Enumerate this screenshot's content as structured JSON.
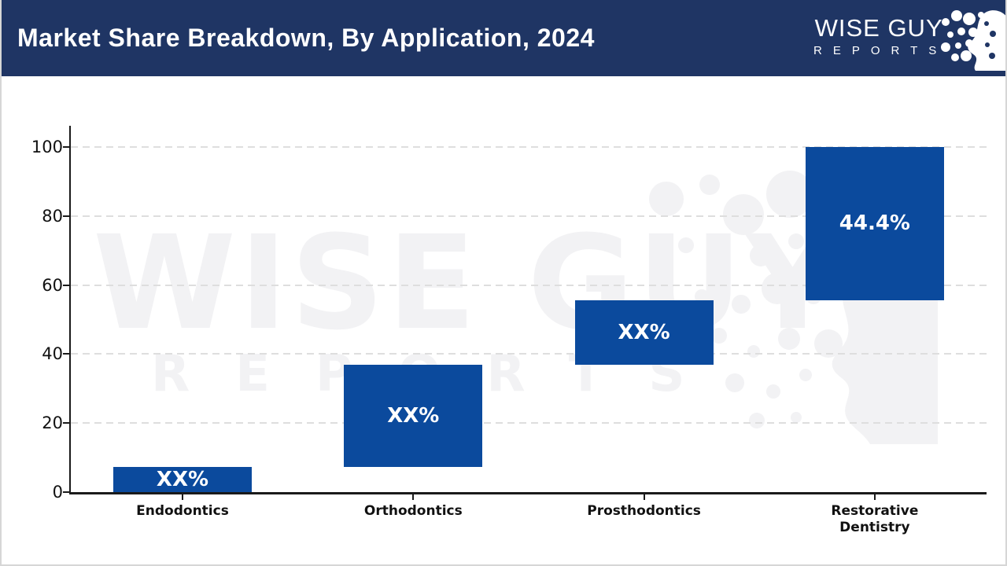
{
  "header": {
    "title": "Market Share Breakdown, By Application, 2024",
    "logo": {
      "wordmark": "WISE GUY",
      "subtext": "REPORTS"
    }
  },
  "watermark": {
    "wordmark": "WISE GUY",
    "subtext": "REPORTS"
  },
  "colors": {
    "header_bg": "#1f3564",
    "title_text": "#ffffff",
    "bar_fill": "#0b4a9d",
    "bar_label": "#ffffff",
    "axis": "#1a1a1a",
    "grid": "#dedede",
    "tick_label": "#111111",
    "watermark": "#f2f2f4",
    "page_border": "#d6d6d6"
  },
  "chart_data": {
    "type": "bar",
    "subtype": "waterfall",
    "title": "Market Share Breakdown, By Application, 2024",
    "xlabel": "",
    "ylabel": "",
    "units": "percent",
    "ylim": [
      0,
      106
    ],
    "yticks": [
      0,
      20,
      40,
      60,
      80,
      100
    ],
    "grid": "horizontal-dashed",
    "legend": "none",
    "categories": [
      "Endodontics",
      "Orthodontics",
      "Prosthodontics",
      "Restorative Dentistry"
    ],
    "segments": [
      {
        "category": "Endodontics",
        "start": 0,
        "end": 7.4,
        "value_label": "XX%"
      },
      {
        "category": "Orthodontics",
        "start": 7.4,
        "end": 37.0,
        "value_label": "XX%"
      },
      {
        "category": "Prosthodontics",
        "start": 37.0,
        "end": 55.6,
        "value_label": "XX%"
      },
      {
        "category": "Restorative Dentistry",
        "start": 55.6,
        "end": 100.0,
        "value_label": "44.4%"
      }
    ]
  }
}
